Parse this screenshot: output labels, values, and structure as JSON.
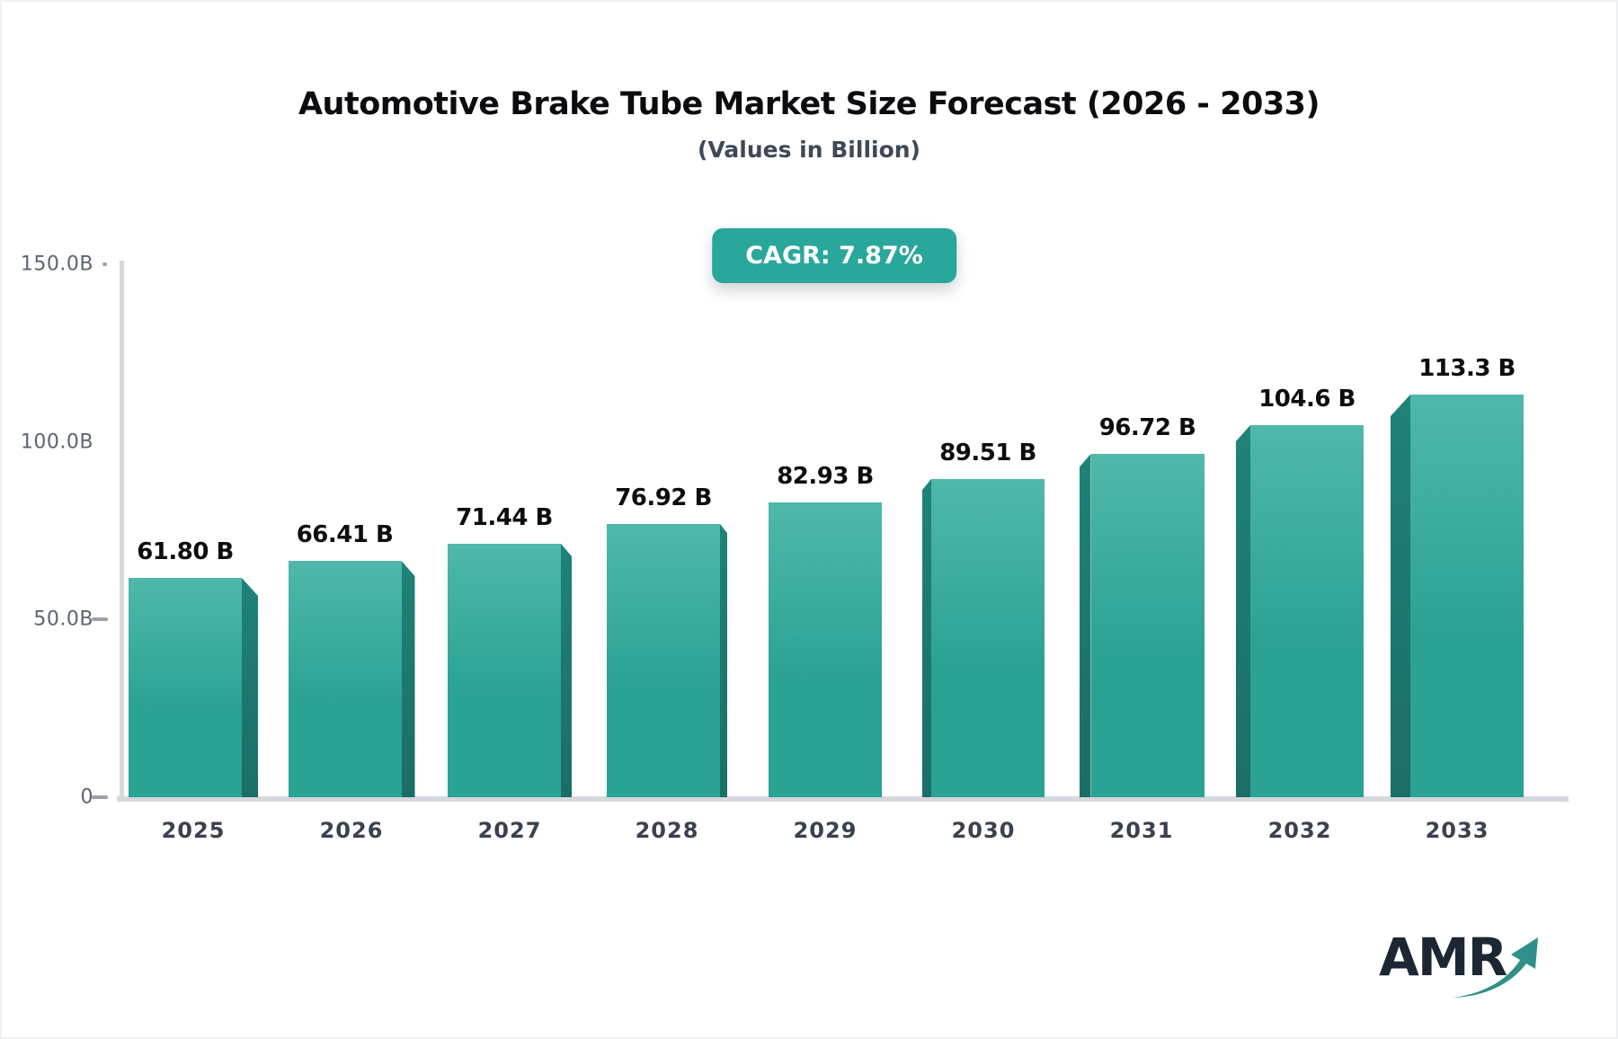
{
  "header": {
    "title": "Automotive Brake Tube Market Size Forecast (2026 - 2033)",
    "subtitle": "(Values in Billion)"
  },
  "badge": {
    "label": "CAGR: 7.87%"
  },
  "chart_data": {
    "type": "bar",
    "title": "Automotive Brake Tube Market Size Forecast (2026 - 2033)",
    "subtitle": "(Values in Billion)",
    "cagr": "7.87%",
    "categories": [
      "2025",
      "2026",
      "2027",
      "2028",
      "2029",
      "2030",
      "2031",
      "2032",
      "2033"
    ],
    "values": [
      61.8,
      66.41,
      71.44,
      76.92,
      82.93,
      89.51,
      96.72,
      104.6,
      113.3
    ],
    "value_labels": [
      "61.80 B",
      "66.41 B",
      "71.44 B",
      "76.92 B",
      "82.93 B",
      "89.51 B",
      "96.72 B",
      "104.6 B",
      "113.3 B"
    ],
    "unit": "Billion",
    "xlabel": "",
    "ylabel": "",
    "ylim": [
      0,
      150
    ],
    "grid": false,
    "legend_position": "none",
    "y_ticks": [
      {
        "label": "150.0B",
        "value": 150
      },
      {
        "label": "100.0B",
        "value": 100
      },
      {
        "label": "50.0B",
        "value": 50
      },
      {
        "label": "0",
        "value": 0
      }
    ],
    "colors": {
      "bar_face_top": "#4fb8aa",
      "bar_face_bottom": "#2aa294",
      "bar_side_top": "#1f8278",
      "bar_side_bottom": "#1b6e66",
      "axis": "#d6d8dd",
      "tick": "#9aa1ac",
      "badge_bg": "#2aa79b",
      "badge_text": "#ffffff",
      "value_label": "#0c0d10",
      "category_label": "#39424f",
      "ytick_label": "#5a6474",
      "logo_text": "#1c2733",
      "logo_arrow": "#2f9089"
    }
  },
  "logo": {
    "text": "AMR"
  }
}
